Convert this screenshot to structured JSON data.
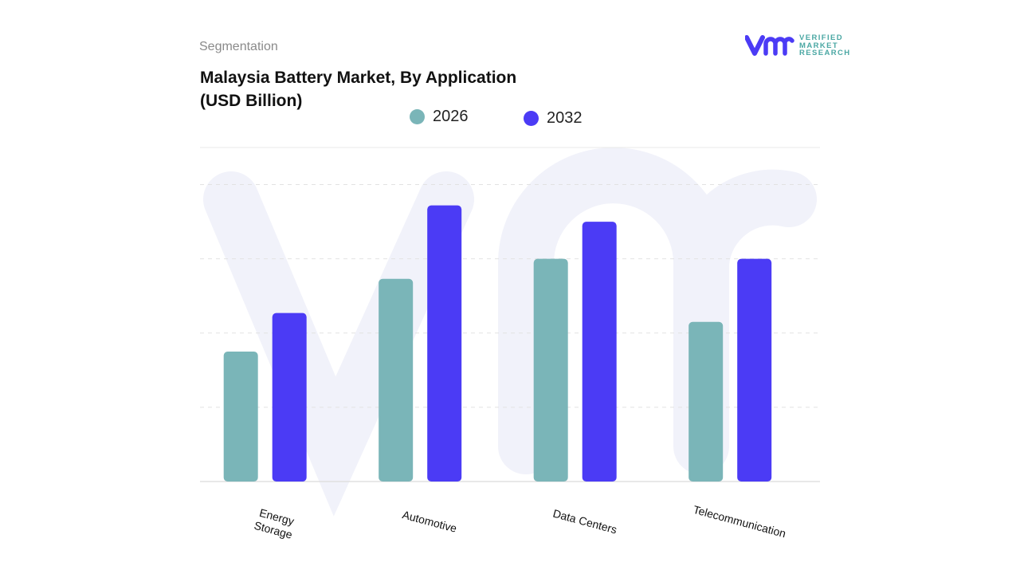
{
  "header": {
    "segment_label": "Segmentation",
    "title": "Malaysia Battery Market, By Application\n(USD Billion)"
  },
  "logo": {
    "text": "VERIFIED MARKET RESEARCH",
    "brand_colors": [
      "#4b3bf5",
      "#4aa7a3"
    ]
  },
  "chart_data": {
    "type": "bar",
    "title": "Malaysia Battery Market, By Application (USD Billion)",
    "categories": [
      "Energy\nStorage",
      "Automotive",
      "Data Centers",
      "Telecommunication"
    ],
    "series": [
      {
        "name": "2026",
        "color": "#7ab5b8",
        "values": [
          1.75,
          2.73,
          3.0,
          2.15
        ]
      },
      {
        "name": "2032",
        "color": "#4b3bf5",
        "values": [
          2.27,
          3.72,
          3.5,
          3.0
        ]
      }
    ],
    "ylim": [
      0,
      4.5
    ],
    "grid": true,
    "y_tick_labels_shown": false,
    "legend_placement": "top-center",
    "xlabel": "",
    "ylabel": ""
  }
}
